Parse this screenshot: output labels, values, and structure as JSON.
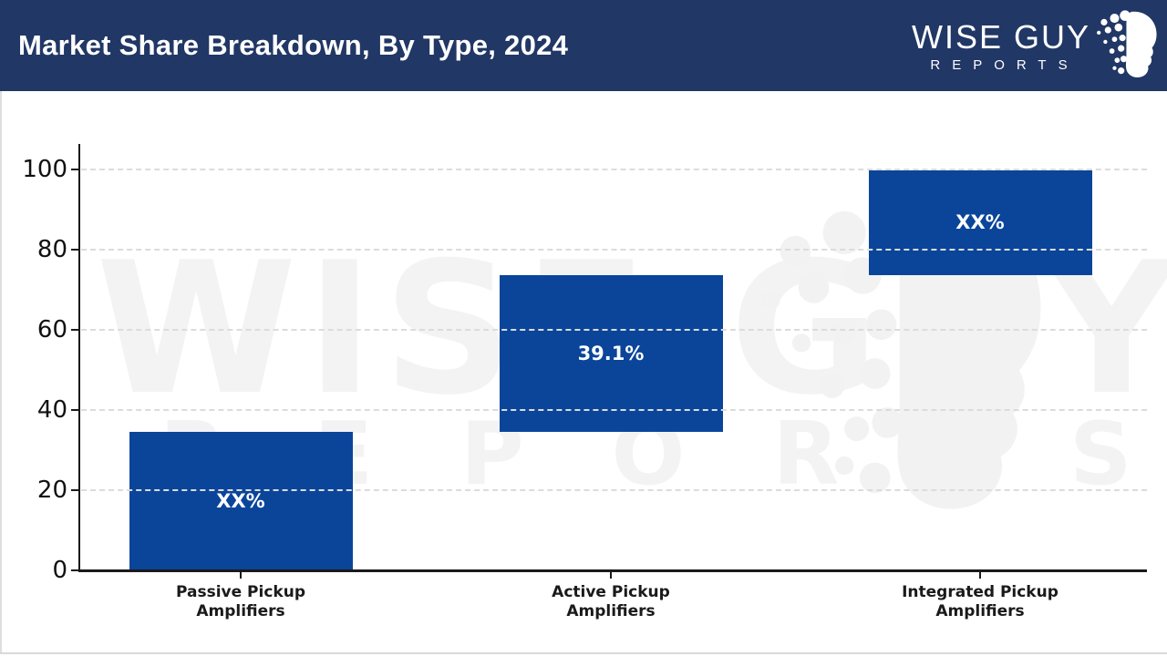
{
  "header": {
    "title": "Market Share Breakdown, By Type, 2024",
    "bg_color": "#213765",
    "logo": {
      "line1": "WISE GUY",
      "line2": "REPORTS"
    }
  },
  "watermark": {
    "line1": "WISE GUY",
    "line2": "REPORTS"
  },
  "chart_data": {
    "type": "bar",
    "subtype": "floating-segment-waterfall",
    "title": "Market Share Breakdown, By Type, 2024",
    "categories": [
      "Passive Pickup\nAmplifiers",
      "Active Pickup\nAmplifiers",
      "Integrated Pickup\nAmplifiers"
    ],
    "segments": [
      {
        "category": "Passive Pickup Amplifiers",
        "start": 0,
        "end": 34.6,
        "label": "XX%"
      },
      {
        "category": "Active Pickup Amplifiers",
        "start": 34.6,
        "end": 73.7,
        "label": "39.1%"
      },
      {
        "category": "Integrated Pickup Amplifiers",
        "start": 73.7,
        "end": 99.8,
        "label": "XX%"
      }
    ],
    "xlabel": "",
    "ylabel": "",
    "yticks": [
      0,
      20,
      40,
      60,
      80,
      100
    ],
    "ylim": [
      0,
      106
    ],
    "grid": "horizontal-dashed",
    "legend": "none",
    "bar_color": "#0a459a",
    "bar_label_color": "#ffffff"
  }
}
